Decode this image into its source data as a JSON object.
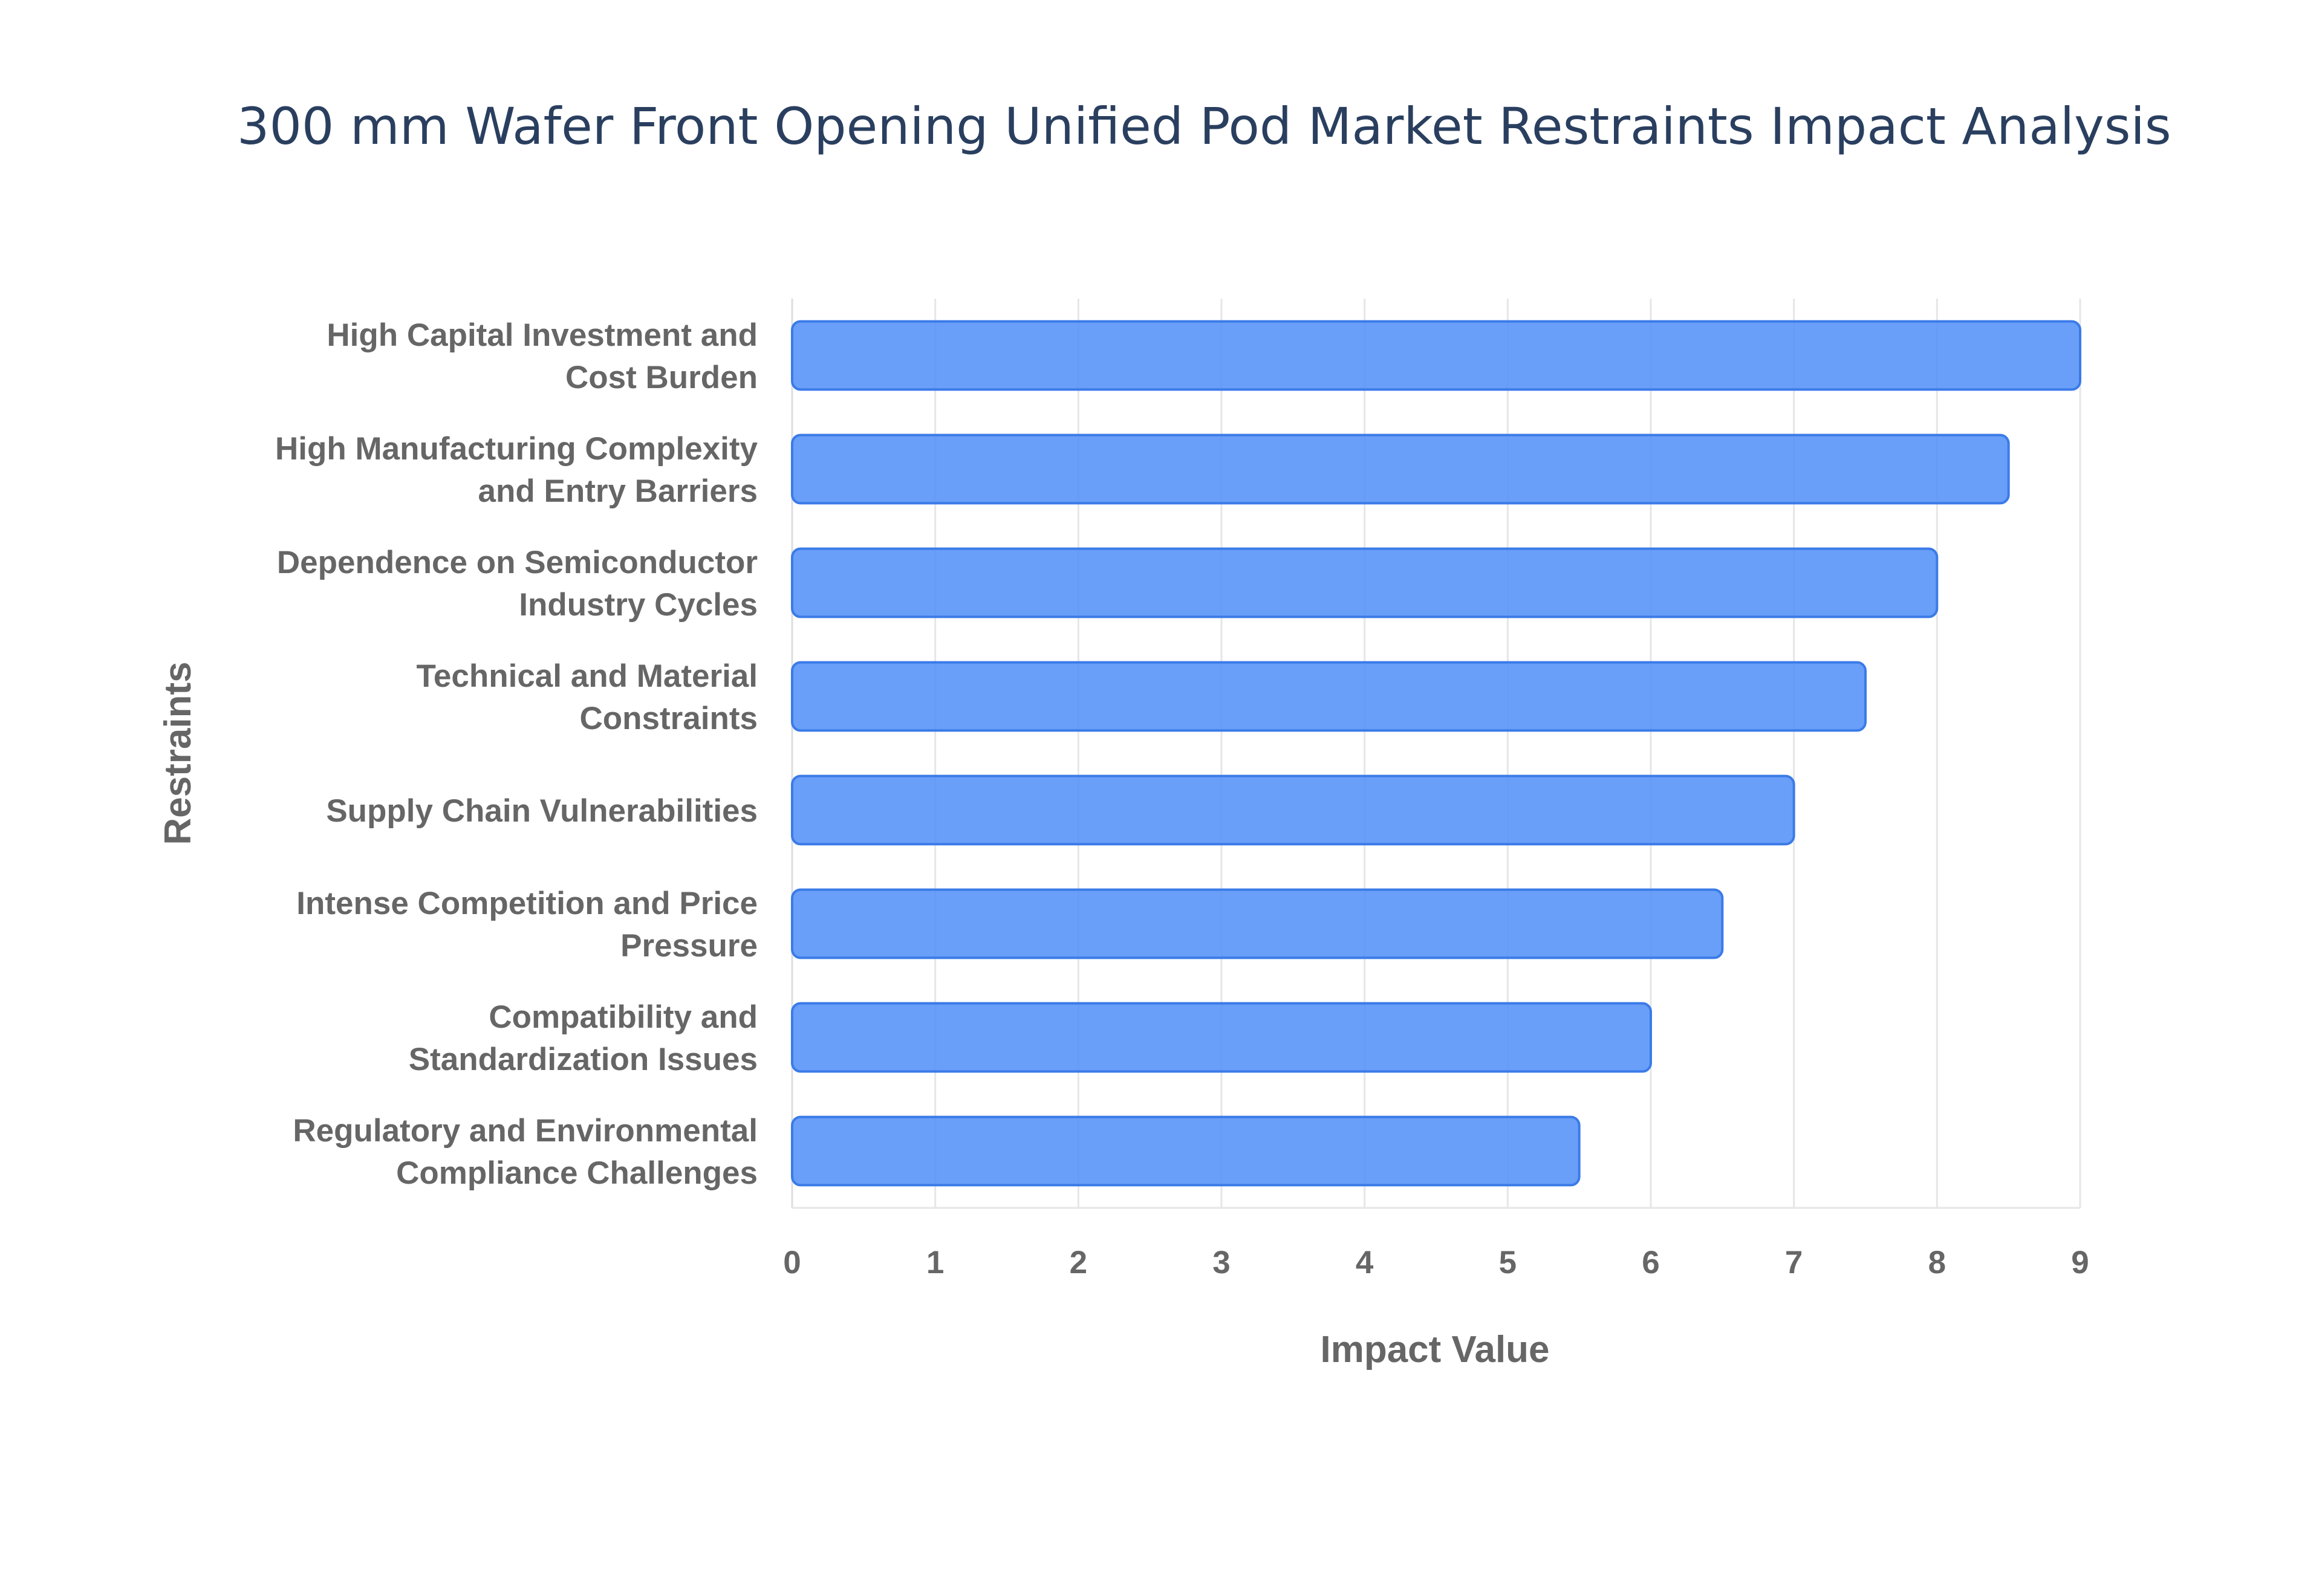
{
  "chart_data": {
    "type": "bar",
    "orientation": "horizontal",
    "title": "300 mm Wafer Front Opening Unified Pod Market Restraints Impact Analysis",
    "xlabel": "Impact Value",
    "ylabel": "Restraints",
    "xlim": [
      0,
      9
    ],
    "x_ticks": [
      "0",
      "1",
      "2",
      "3",
      "4",
      "5",
      "6",
      "7",
      "8",
      "9"
    ],
    "grid": true,
    "bar_color": "#4f8ef7",
    "bar_border_color": "#3b7be8",
    "categories": [
      [
        "High Capital Investment and",
        "Cost Burden"
      ],
      [
        "High Manufacturing Complexity",
        "and Entry Barriers"
      ],
      [
        "Dependence on Semiconductor",
        "Industry Cycles"
      ],
      [
        "Technical and Material",
        "Constraints"
      ],
      [
        "Supply Chain Vulnerabilities"
      ],
      [
        "Intense Competition and Price",
        "Pressure"
      ],
      [
        "Compatibility and",
        "Standardization Issues"
      ],
      [
        "Regulatory and Environmental",
        "Compliance Challenges"
      ]
    ],
    "values": [
      9,
      8.5,
      8,
      7.5,
      7,
      6.5,
      6,
      5.5
    ]
  }
}
